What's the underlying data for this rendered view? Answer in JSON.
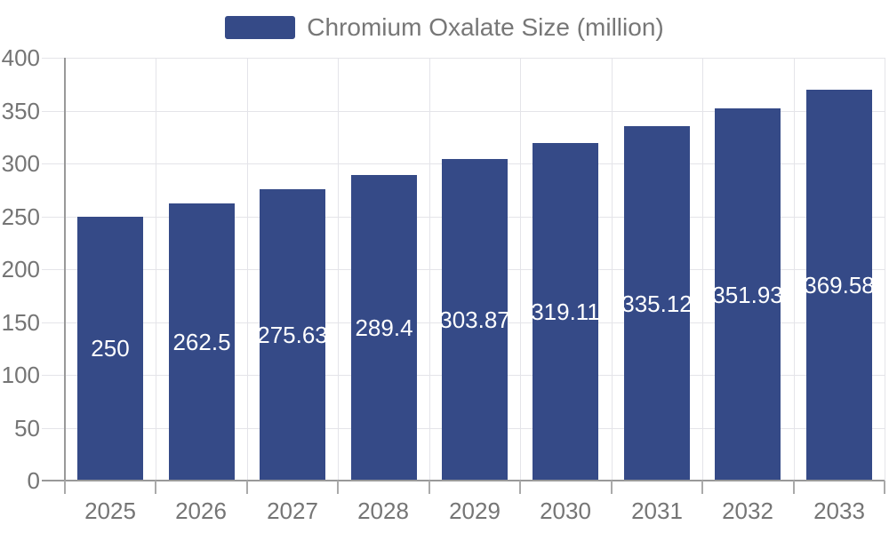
{
  "chart_data": {
    "type": "bar",
    "title": "Chromium Oxalate Size (million)",
    "legend_position": "top",
    "categories": [
      "2025",
      "2026",
      "2027",
      "2028",
      "2029",
      "2030",
      "2031",
      "2032",
      "2033"
    ],
    "values": [
      250,
      262.5,
      275.63,
      289.4,
      303.87,
      319.11,
      335.12,
      351.93,
      369.58
    ],
    "value_labels": [
      "250",
      "262.5",
      "275.63",
      "289.4",
      "303.87",
      "319.11",
      "335.12",
      "351.93",
      "369.58"
    ],
    "xlabel": "",
    "ylabel": "",
    "ylim": [
      0,
      400
    ],
    "ytick_step": 50,
    "yticks": [
      0,
      50,
      100,
      150,
      200,
      250,
      300,
      350,
      400
    ],
    "grid": true,
    "colors": {
      "bar": "#354a87",
      "value_label": "#ffffff",
      "axis_label": "#757575",
      "legend_text": "#777777",
      "grid_line": "#e4e4e9",
      "axis_line": "#999999",
      "tick": "#aaaaaa"
    }
  }
}
